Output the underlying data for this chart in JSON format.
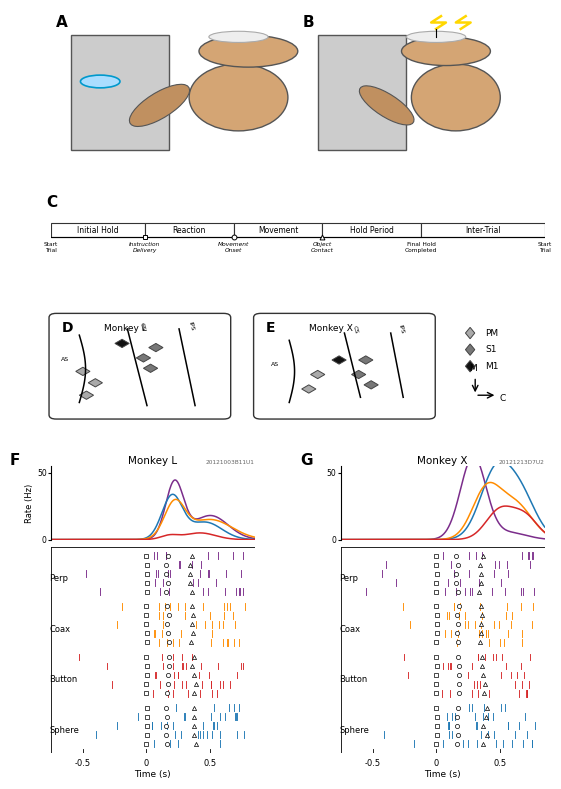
{
  "panel_labels": [
    "A",
    "B",
    "C",
    "D",
    "E",
    "F",
    "G"
  ],
  "timeline_phases": [
    "Initial Hold",
    "Reaction",
    "Movement",
    "Hold Period",
    "Inter-Trial"
  ],
  "monkey_L_title": "Monkey L",
  "monkey_X_title": "Monkey X",
  "unit_L": "20121003B11U1",
  "unit_X": "20121213D7U2",
  "rate_label": "Rate (Hz)",
  "time_label": "Time (s)",
  "ylim_rate": [
    0,
    55
  ],
  "ytick_rate": 50,
  "xlim": [
    -0.75,
    0.85
  ],
  "xticks": [
    -0.5,
    0,
    0.5
  ],
  "raster_labels": [
    "Perp",
    "Coax",
    "Button",
    "Sphere"
  ],
  "line_colors_L": [
    "#7B2D8B",
    "#1E78B4",
    "#FF8C00",
    "#D62728"
  ],
  "line_colors_X": [
    "#7B2D8B",
    "#1E78B4",
    "#FF8C00",
    "#D62728"
  ],
  "legend_labels": [
    "PM",
    "S1",
    "M1"
  ],
  "legend_colors": [
    "#aaaaaa",
    "#777777",
    "#111111"
  ],
  "bg_color": "#ffffff",
  "raster_color_perp": "#7B2D8B",
  "raster_color_coax": "#FF8C00",
  "raster_color_button": "#D62728",
  "raster_color_sphere": "#1E78B4"
}
